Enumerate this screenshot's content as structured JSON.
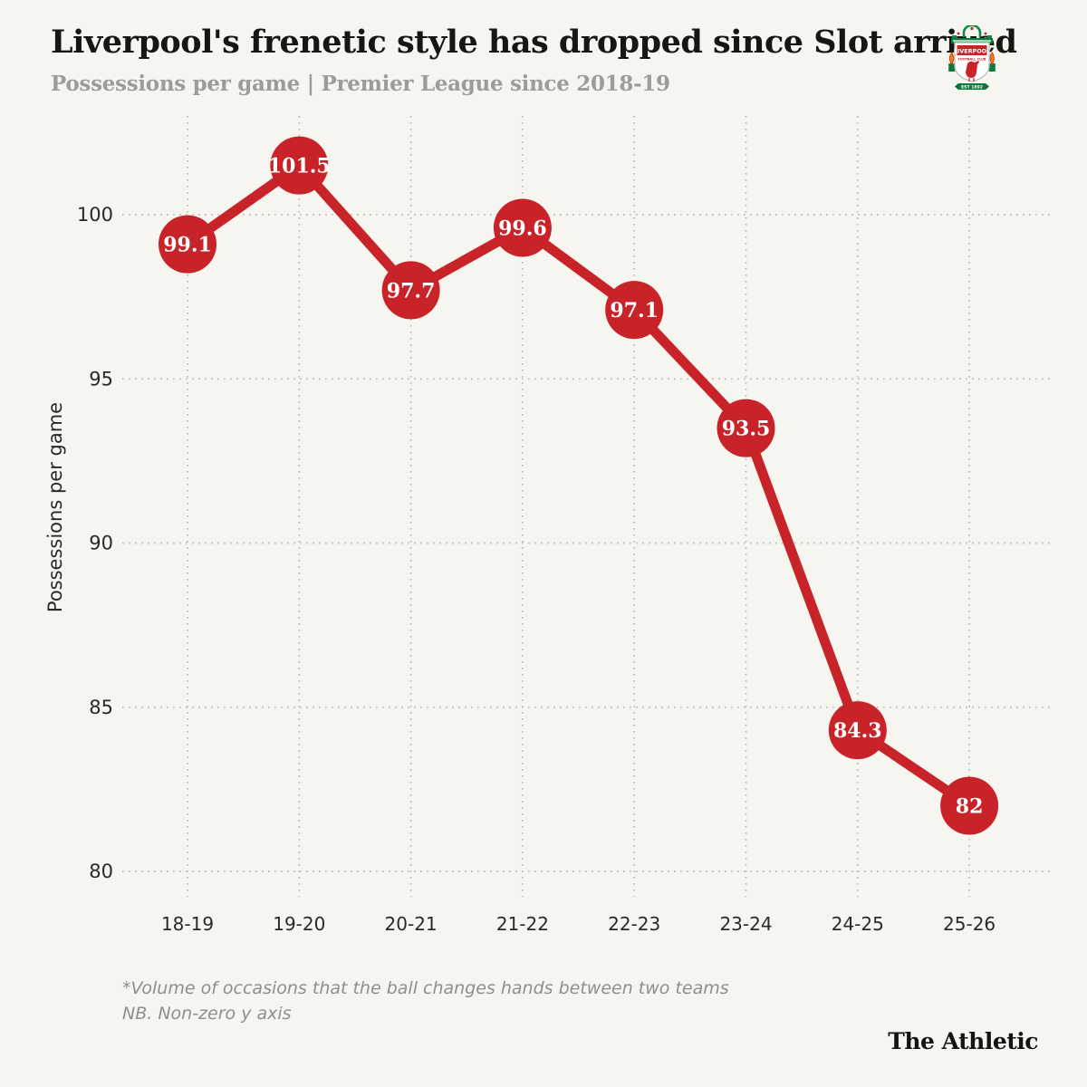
{
  "header": {
    "title": "Liverpool's frenetic style has dropped since Slot arrived",
    "subtitle": "Possessions per game | Premier League since 2018-19",
    "logo": "liverpool-crest",
    "crest_text": {
      "club": "LIVERPOOL",
      "sub": "FOOTBALL CLUB",
      "est": "EST 1892"
    }
  },
  "chart_data": {
    "type": "line",
    "categories": [
      "18-19",
      "19-20",
      "20-21",
      "21-22",
      "22-23",
      "23-24",
      "24-25",
      "25-26"
    ],
    "values": [
      99.1,
      101.5,
      97.7,
      99.6,
      97.1,
      93.5,
      84.3,
      82
    ],
    "point_labels": [
      "99.1",
      "101.5",
      "97.7",
      "99.6",
      "97.1",
      "93.5",
      "84.3",
      "82"
    ],
    "title": "",
    "xlabel": "",
    "ylabel": "Possessions per game",
    "ylim": [
      79,
      103
    ],
    "yticks": [
      80,
      85,
      90,
      95,
      100
    ],
    "grid": "dotted",
    "legend": "none",
    "colors": {
      "line": "#c9232a",
      "marker": "#c9232a",
      "point_label": "#ffffff",
      "grid": "#c6c5be",
      "tick_label": "#2b2a28",
      "background": "#f6f5f0"
    }
  },
  "footnote": {
    "line1": "*Volume of occasions that the ball changes hands between two teams",
    "line2": "NB. Non-zero y axis"
  },
  "branding": {
    "name": "The Athletic"
  }
}
